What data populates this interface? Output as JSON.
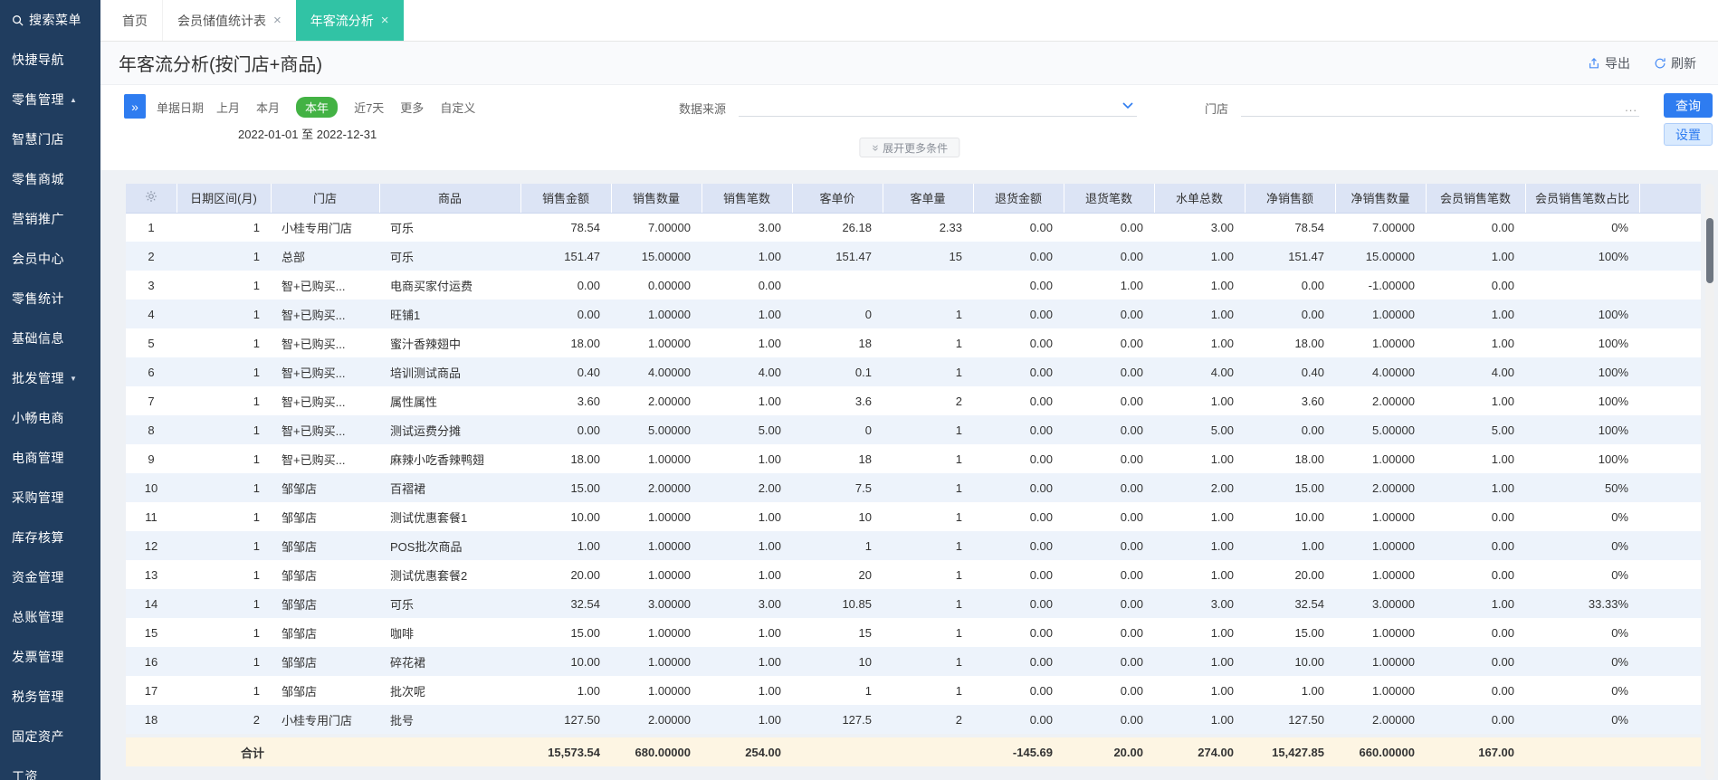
{
  "colors": {
    "sidebar_bg": "#203d5f",
    "accent_blue": "#2e7cf0",
    "tab_active": "#31c3a5",
    "pill_green": "#43b244",
    "neg_red": "#e23c3c",
    "header_bg": "#dce4f5",
    "total_bg": "#fdf5e3",
    "alt_row": "#edf3fb",
    "page_bg": "#eef1f5"
  },
  "icons": {
    "expand_panel": "»",
    "expand_more": "«",
    "group_up": "▲",
    "group_down": "▼",
    "tab_close": "×",
    "store_picker": "..."
  },
  "sidebar": {
    "items": [
      {
        "label": "搜索菜单",
        "icon": "search",
        "type": "item"
      },
      {
        "label": "快捷导航",
        "type": "item"
      },
      {
        "label": "零售管理",
        "type": "group",
        "arrow": "up"
      },
      {
        "label": "智慧门店",
        "type": "item"
      },
      {
        "label": "零售商城",
        "type": "item"
      },
      {
        "label": "营销推广",
        "type": "item"
      },
      {
        "label": "会员中心",
        "type": "item"
      },
      {
        "label": "零售统计",
        "type": "item"
      },
      {
        "label": "基础信息",
        "type": "item"
      },
      {
        "label": "批发管理",
        "type": "group",
        "arrow": "down"
      },
      {
        "label": "小畅电商",
        "type": "item"
      },
      {
        "label": "电商管理",
        "type": "item"
      },
      {
        "label": "采购管理",
        "type": "item"
      },
      {
        "label": "库存核算",
        "type": "item"
      },
      {
        "label": "资金管理",
        "type": "item"
      },
      {
        "label": "总账管理",
        "type": "item"
      },
      {
        "label": "发票管理",
        "type": "item"
      },
      {
        "label": "税务管理",
        "type": "item"
      },
      {
        "label": "固定资产",
        "type": "item"
      },
      {
        "label": "工资",
        "type": "item"
      }
    ]
  },
  "tabs": [
    {
      "label": "首页",
      "closable": false,
      "active": false
    },
    {
      "label": "会员储值统计表",
      "closable": true,
      "active": false
    },
    {
      "label": "年客流分析",
      "closable": true,
      "active": true
    }
  ],
  "page": {
    "title": "年客流分析(按门店+商品)",
    "export_label": "导出",
    "refresh_label": "刷新"
  },
  "filters": {
    "date_label": "单据日期",
    "date_pills": [
      {
        "label": "上月",
        "active": false
      },
      {
        "label": "本月",
        "active": false
      },
      {
        "label": "本年",
        "active": true
      },
      {
        "label": "近7天",
        "active": false
      },
      {
        "label": "更多",
        "active": false
      },
      {
        "label": "自定义",
        "active": false
      }
    ],
    "date_range": "2022-01-01 至 2022-12-31",
    "source_label": "数据来源",
    "store_label": "门店",
    "query_label": "查询",
    "settings_label": "设置",
    "expand_label": "展开更多条件"
  },
  "table": {
    "columns": [
      "日期区间(月)",
      "门店",
      "商品",
      "销售金额",
      "销售数量",
      "销售笔数",
      "客单价",
      "客单量",
      "退货金额",
      "退货笔数",
      "水单总数",
      "净销售额",
      "净销售数量",
      "会员销售笔数",
      "会员销售笔数占比"
    ],
    "rows": [
      [
        "1",
        "1",
        "小桂专用门店",
        "可乐",
        "78.54",
        "7.00000",
        "3.00",
        "26.18",
        "2.33",
        "0.00",
        "0.00",
        "3.00",
        "78.54",
        "7.00000",
        "0.00",
        "0%"
      ],
      [
        "2",
        "1",
        "总部",
        "可乐",
        "151.47",
        "15.00000",
        "1.00",
        "151.47",
        "15",
        "0.00",
        "0.00",
        "1.00",
        "151.47",
        "15.00000",
        "1.00",
        "100%"
      ],
      [
        "3",
        "1",
        "智+已购买...",
        "电商买家付运费",
        "0.00",
        "0.00000",
        "0.00",
        "",
        "",
        "0.00",
        "1.00",
        "1.00",
        "0.00",
        "-1.00000",
        "0.00",
        ""
      ],
      [
        "4",
        "1",
        "智+已购买...",
        "旺铺1",
        "0.00",
        "1.00000",
        "1.00",
        "0",
        "1",
        "0.00",
        "0.00",
        "1.00",
        "0.00",
        "1.00000",
        "1.00",
        "100%"
      ],
      [
        "5",
        "1",
        "智+已购买...",
        "蜜汁香辣翅中",
        "18.00",
        "1.00000",
        "1.00",
        "18",
        "1",
        "0.00",
        "0.00",
        "1.00",
        "18.00",
        "1.00000",
        "1.00",
        "100%"
      ],
      [
        "6",
        "1",
        "智+已购买...",
        "培训测试商品",
        "0.40",
        "4.00000",
        "4.00",
        "0.1",
        "1",
        "0.00",
        "0.00",
        "4.00",
        "0.40",
        "4.00000",
        "4.00",
        "100%"
      ],
      [
        "7",
        "1",
        "智+已购买...",
        "属性属性",
        "3.60",
        "2.00000",
        "1.00",
        "3.6",
        "2",
        "0.00",
        "0.00",
        "1.00",
        "3.60",
        "2.00000",
        "1.00",
        "100%"
      ],
      [
        "8",
        "1",
        "智+已购买...",
        "测试运费分摊",
        "0.00",
        "5.00000",
        "5.00",
        "0",
        "1",
        "0.00",
        "0.00",
        "5.00",
        "0.00",
        "5.00000",
        "5.00",
        "100%"
      ],
      [
        "9",
        "1",
        "智+已购买...",
        "麻辣小吃香辣鸭翅",
        "18.00",
        "1.00000",
        "1.00",
        "18",
        "1",
        "0.00",
        "0.00",
        "1.00",
        "18.00",
        "1.00000",
        "1.00",
        "100%"
      ],
      [
        "10",
        "1",
        "邹邹店",
        "百褶裙",
        "15.00",
        "2.00000",
        "2.00",
        "7.5",
        "1",
        "0.00",
        "0.00",
        "2.00",
        "15.00",
        "2.00000",
        "1.00",
        "50%"
      ],
      [
        "11",
        "1",
        "邹邹店",
        "测试优惠套餐1",
        "10.00",
        "1.00000",
        "1.00",
        "10",
        "1",
        "0.00",
        "0.00",
        "1.00",
        "10.00",
        "1.00000",
        "0.00",
        "0%"
      ],
      [
        "12",
        "1",
        "邹邹店",
        "POS批次商品",
        "1.00",
        "1.00000",
        "1.00",
        "1",
        "1",
        "0.00",
        "0.00",
        "1.00",
        "1.00",
        "1.00000",
        "0.00",
        "0%"
      ],
      [
        "13",
        "1",
        "邹邹店",
        "测试优惠套餐2",
        "20.00",
        "1.00000",
        "1.00",
        "20",
        "1",
        "0.00",
        "0.00",
        "1.00",
        "20.00",
        "1.00000",
        "0.00",
        "0%"
      ],
      [
        "14",
        "1",
        "邹邹店",
        "可乐",
        "32.54",
        "3.00000",
        "3.00",
        "10.85",
        "1",
        "0.00",
        "0.00",
        "3.00",
        "32.54",
        "3.00000",
        "1.00",
        "33.33%"
      ],
      [
        "15",
        "1",
        "邹邹店",
        "咖啡",
        "15.00",
        "1.00000",
        "1.00",
        "15",
        "1",
        "0.00",
        "0.00",
        "1.00",
        "15.00",
        "1.00000",
        "0.00",
        "0%"
      ],
      [
        "16",
        "1",
        "邹邹店",
        "碎花裙",
        "10.00",
        "1.00000",
        "1.00",
        "10",
        "1",
        "0.00",
        "0.00",
        "1.00",
        "10.00",
        "1.00000",
        "0.00",
        "0%"
      ],
      [
        "17",
        "1",
        "邹邹店",
        "批次呢",
        "1.00",
        "1.00000",
        "1.00",
        "1",
        "1",
        "0.00",
        "0.00",
        "1.00",
        "1.00",
        "1.00000",
        "0.00",
        "0%"
      ],
      [
        "18",
        "2",
        "小桂专用门店",
        "批号",
        "127.50",
        "2.00000",
        "1.00",
        "127.5",
        "2",
        "0.00",
        "0.00",
        "1.00",
        "127.50",
        "2.00000",
        "0.00",
        "0%"
      ]
    ],
    "total_label": "合计",
    "total": [
      "15,573.54",
      "680.00000",
      "254.00",
      "",
      "",
      "-145.69",
      "20.00",
      "274.00",
      "15,427.85",
      "660.00000",
      "167.00",
      ""
    ]
  }
}
